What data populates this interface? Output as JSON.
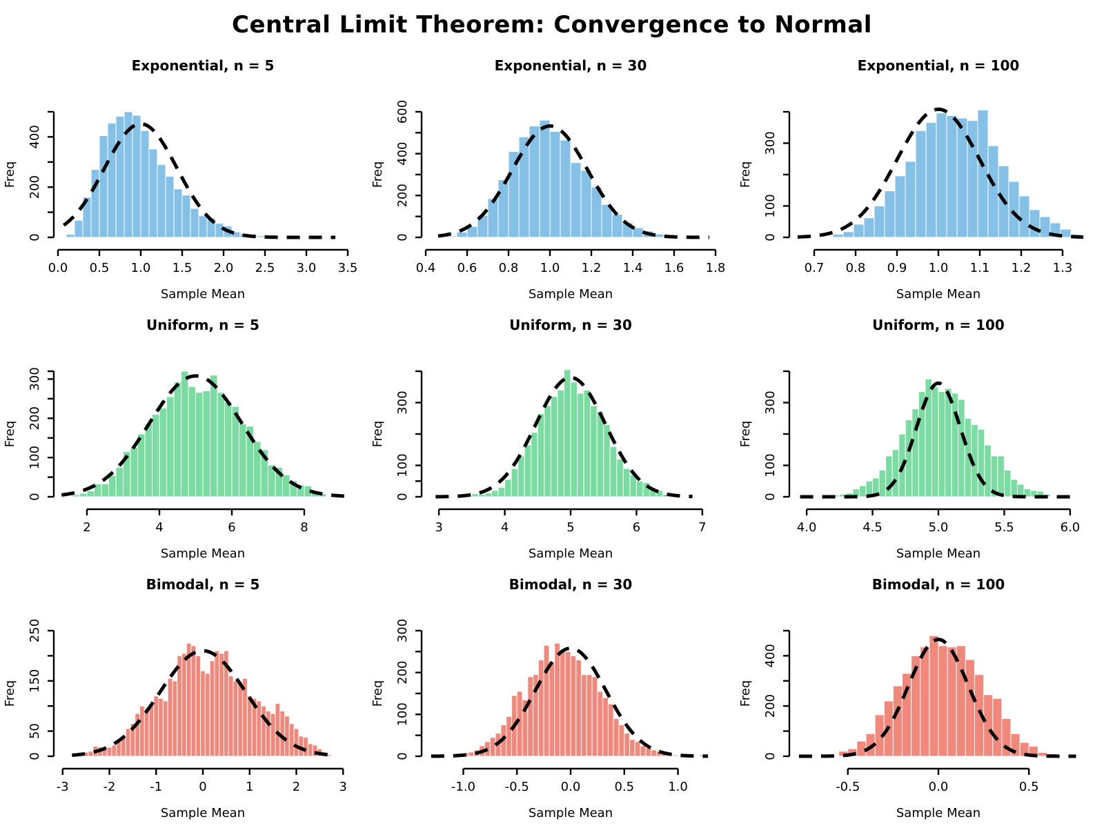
{
  "title": "Central Limit Theorem: Convergence to Normal",
  "axis_labels": {
    "x": "Sample Mean",
    "y": "Freq"
  },
  "style": {
    "bar_colors": {
      "exponential": "#85C1E6",
      "uniform": "#7BDCA2",
      "bimodal": "#F0897B"
    },
    "curve_color": "#000000",
    "axis_color": "#000000"
  },
  "chart_data": [
    {
      "type": "bar",
      "subtype": "histogram-with-normal-curve",
      "title": "Exponential, n = 5",
      "row": "exponential",
      "xlabel": "Sample Mean",
      "ylabel": "Freq",
      "x_range": [
        0.0,
        3.5
      ],
      "x_ticks": [
        [
          0.0,
          "0.0"
        ],
        [
          0.5,
          "0.5"
        ],
        [
          1.0,
          "1.0"
        ],
        [
          1.5,
          "1.5"
        ],
        [
          2.0,
          "2.0"
        ],
        [
          2.5,
          "2.5"
        ],
        [
          3.0,
          "3.0"
        ],
        [
          3.5,
          "3.5"
        ]
      ],
      "y_axis_max": 500,
      "y_ticks": [
        [
          0,
          "0"
        ],
        [
          100,
          ""
        ],
        [
          200,
          "200"
        ],
        [
          300,
          ""
        ],
        [
          400,
          "400"
        ],
        [
          500,
          ""
        ]
      ],
      "bars": {
        "x0": 0.1,
        "bin_width": 0.1,
        "heights": [
          12,
          68,
          160,
          270,
          405,
          455,
          482,
          500,
          486,
          425,
          352,
          290,
          243,
          193,
          168,
          115,
          86,
          76,
          56,
          45,
          22,
          16,
          13,
          6,
          3
        ]
      },
      "curve": {
        "mean": 1.0,
        "sd": 0.44,
        "peak": 452,
        "x_min": 0.07,
        "x_max": 3.35
      }
    },
    {
      "type": "bar",
      "subtype": "histogram-with-normal-curve",
      "title": "Exponential, n = 30",
      "row": "exponential",
      "xlabel": "Sample Mean",
      "ylabel": "Freq",
      "x_range": [
        0.4,
        1.8
      ],
      "x_ticks": [
        [
          0.4,
          "0.4"
        ],
        [
          0.6,
          "0.6"
        ],
        [
          0.8,
          "0.8"
        ],
        [
          1.0,
          "1.0"
        ],
        [
          1.2,
          "1.2"
        ],
        [
          1.4,
          "1.4"
        ],
        [
          1.6,
          "1.6"
        ],
        [
          1.8,
          "1.8"
        ]
      ],
      "y_axis_max": 600,
      "y_ticks": [
        [
          0,
          "0"
        ],
        [
          100,
          ""
        ],
        [
          200,
          "200"
        ],
        [
          300,
          ""
        ],
        [
          400,
          "400"
        ],
        [
          500,
          ""
        ],
        [
          600,
          "600"
        ]
      ],
      "bars": {
        "x0": 0.5,
        "bin_width": 0.05,
        "heights": [
          6,
          25,
          52,
          105,
          185,
          275,
          410,
          480,
          532,
          560,
          506,
          465,
          357,
          320,
          240,
          157,
          110,
          70,
          46,
          30,
          16,
          8
        ]
      },
      "curve": {
        "mean": 1.0,
        "sd": 0.182,
        "peak": 532,
        "x_min": 0.46,
        "x_max": 1.77
      }
    },
    {
      "type": "bar",
      "subtype": "histogram-with-normal-curve",
      "title": "Exponential, n = 100",
      "row": "exponential",
      "xlabel": "Sample Mean",
      "ylabel": "Freq",
      "x_range": [
        0.65,
        1.35
      ],
      "x_ticks": [
        [
          0.7,
          "0.7"
        ],
        [
          0.8,
          "0.8"
        ],
        [
          0.9,
          "0.9"
        ],
        [
          1.0,
          "1.0"
        ],
        [
          1.1,
          "1.1"
        ],
        [
          1.2,
          "1.2"
        ],
        [
          1.3,
          "1.3"
        ]
      ],
      "y_axis_max": 400,
      "y_ticks": [
        [
          0,
          "0"
        ],
        [
          100,
          "100"
        ],
        [
          200,
          ""
        ],
        [
          300,
          "300"
        ],
        [
          400,
          ""
        ]
      ],
      "bars": {
        "x0": 0.745,
        "bin_width": 0.025,
        "heights": [
          10,
          18,
          42,
          62,
          100,
          148,
          196,
          242,
          340,
          366,
          396,
          388,
          380,
          372,
          406,
          292,
          228,
          178,
          132,
          88,
          66,
          46,
          26,
          10
        ]
      },
      "curve": {
        "mean": 1.0,
        "sd": 0.1,
        "peak": 408,
        "x_min": 0.66,
        "x_max": 1.35
      }
    },
    {
      "type": "bar",
      "subtype": "histogram-with-normal-curve",
      "title": "Uniform, n = 5",
      "row": "uniform",
      "xlabel": "Sample Mean",
      "ylabel": "Freq",
      "x_range": [
        1.2,
        9.2
      ],
      "x_ticks": [
        [
          2,
          "2"
        ],
        [
          4,
          "4"
        ],
        [
          6,
          "6"
        ],
        [
          8,
          "8"
        ]
      ],
      "y_axis_max": 320,
      "y_ticks": [
        [
          0,
          "0"
        ],
        [
          50,
          ""
        ],
        [
          100,
          "100"
        ],
        [
          150,
          ""
        ],
        [
          200,
          "200"
        ],
        [
          250,
          ""
        ],
        [
          300,
          "300"
        ],
        [
          320,
          ""
        ]
      ],
      "bars": {
        "x0": 1.6,
        "bin_width": 0.2,
        "heights": [
          5,
          9,
          15,
          33,
          33,
          55,
          75,
          115,
          126,
          160,
          186,
          210,
          226,
          255,
          292,
          320,
          281,
          266,
          270,
          310,
          266,
          241,
          230,
          186,
          180,
          141,
          120,
          81,
          75,
          56,
          41,
          30,
          28,
          13,
          8
        ]
      },
      "curve": {
        "mean": 5.0,
        "sd": 1.28,
        "peak": 308,
        "x_min": 1.3,
        "x_max": 9.1
      }
    },
    {
      "type": "bar",
      "subtype": "histogram-with-normal-curve",
      "title": "Uniform, n = 30",
      "row": "uniform",
      "xlabel": "Sample Mean",
      "ylabel": "Freq",
      "x_range": [
        2.8,
        7.2
      ],
      "x_ticks": [
        [
          3,
          "3"
        ],
        [
          4,
          "4"
        ],
        [
          5,
          "5"
        ],
        [
          6,
          "6"
        ],
        [
          7,
          "7"
        ]
      ],
      "y_axis_max": 400,
      "y_ticks": [
        [
          0,
          "0"
        ],
        [
          50,
          ""
        ],
        [
          100,
          "100"
        ],
        [
          200,
          ""
        ],
        [
          300,
          "300"
        ],
        [
          400,
          ""
        ]
      ],
      "bars": {
        "x0": 3.4,
        "bin_width": 0.1,
        "heights": [
          5,
          10,
          8,
          12,
          20,
          30,
          55,
          90,
          130,
          165,
          205,
          265,
          290,
          320,
          340,
          405,
          365,
          330,
          340,
          290,
          270,
          230,
          160,
          120,
          90,
          70,
          50,
          45,
          25,
          20,
          8
        ]
      },
      "curve": {
        "mean": 5.0,
        "sd": 0.53,
        "peak": 380,
        "x_min": 2.95,
        "x_max": 6.85
      }
    },
    {
      "type": "bar",
      "subtype": "histogram-with-normal-curve",
      "title": "Uniform, n = 100",
      "row": "uniform",
      "xlabel": "Sample Mean",
      "ylabel": "Freq",
      "x_range": [
        3.9,
        6.1
      ],
      "x_ticks": [
        [
          4.0,
          "4.0"
        ],
        [
          4.5,
          "4.5"
        ],
        [
          5.0,
          "5.0"
        ],
        [
          5.5,
          "5.5"
        ],
        [
          6.0,
          "6.0"
        ]
      ],
      "y_axis_max": 400,
      "y_ticks": [
        [
          0,
          "0"
        ],
        [
          100,
          "100"
        ],
        [
          200,
          ""
        ],
        [
          300,
          "300"
        ],
        [
          400,
          ""
        ]
      ],
      "bars": {
        "x0": 4.2,
        "bin_width": 0.05,
        "heights": [
          5,
          8,
          12,
          25,
          35,
          50,
          60,
          85,
          130,
          150,
          200,
          245,
          280,
          335,
          375,
          350,
          335,
          345,
          330,
          310,
          250,
          230,
          215,
          165,
          130,
          130,
          85,
          55,
          40,
          25,
          20,
          18,
          8
        ]
      },
      "curve": {
        "mean": 5.0,
        "sd": 0.167,
        "peak": 362,
        "x_min": 3.95,
        "x_max": 6.05
      }
    },
    {
      "type": "bar",
      "subtype": "histogram-with-normal-curve",
      "title": "Bimodal, n = 5",
      "row": "bimodal",
      "xlabel": "Sample Mean",
      "ylabel": "Freq",
      "x_range": [
        -3.1,
        3.1
      ],
      "x_ticks": [
        [
          -3,
          "-3"
        ],
        [
          -2,
          "-2"
        ],
        [
          -1,
          "-1"
        ],
        [
          0,
          "0"
        ],
        [
          1,
          "1"
        ],
        [
          2,
          "2"
        ],
        [
          3,
          "3"
        ]
      ],
      "y_axis_max": 250,
      "y_ticks": [
        [
          0,
          "0"
        ],
        [
          50,
          "50"
        ],
        [
          100,
          ""
        ],
        [
          150,
          "150"
        ],
        [
          200,
          ""
        ],
        [
          250,
          "250"
        ]
      ],
      "bars": {
        "x0": -2.75,
        "bin_width": 0.1,
        "heights": [
          3,
          5,
          8,
          10,
          20,
          18,
          15,
          18,
          22,
          30,
          40,
          55,
          65,
          85,
          100,
          95,
          105,
          120,
          115,
          110,
          155,
          150,
          200,
          205,
          225,
          220,
          200,
          170,
          165,
          190,
          210,
          205,
          210,
          160,
          150,
          148,
          155,
          120,
          115,
          110,
          100,
          90,
          85,
          105,
          90,
          80,
          65,
          55,
          40,
          38,
          25,
          22,
          15,
          8,
          3
        ]
      },
      "curve": {
        "mean": 0.0,
        "sd": 0.92,
        "peak": 210,
        "x_min": -2.8,
        "x_max": 2.8
      }
    },
    {
      "type": "bar",
      "subtype": "histogram-with-normal-curve",
      "title": "Bimodal, n = 30",
      "row": "bimodal",
      "xlabel": "Sample Mean",
      "ylabel": "Freq",
      "x_range": [
        -1.35,
        1.35
      ],
      "x_ticks": [
        [
          -1.0,
          "-1.0"
        ],
        [
          -0.5,
          "-0.5"
        ],
        [
          0.0,
          "0.0"
        ],
        [
          0.5,
          "0.5"
        ],
        [
          1.0,
          "1.0"
        ]
      ],
      "y_axis_max": 300,
      "y_ticks": [
        [
          0,
          "0"
        ],
        [
          50,
          ""
        ],
        [
          100,
          "100"
        ],
        [
          150,
          ""
        ],
        [
          200,
          "200"
        ],
        [
          250,
          ""
        ],
        [
          300,
          "300"
        ]
      ],
      "bars": {
        "x0": -1.05,
        "bin_width": 0.05,
        "heights": [
          4,
          8,
          10,
          15,
          25,
          35,
          45,
          55,
          75,
          95,
          145,
          155,
          135,
          190,
          195,
          230,
          265,
          225,
          270,
          255,
          250,
          240,
          230,
          195,
          195,
          190,
          155,
          140,
          125,
          90,
          75,
          55,
          40,
          35,
          25,
          20,
          15,
          12,
          8,
          5,
          3,
          0,
          0,
          0,
          0,
          3
        ]
      },
      "curve": {
        "mean": 0.0,
        "sd": 0.33,
        "peak": 258,
        "x_min": -1.3,
        "x_max": 1.28
      }
    },
    {
      "type": "bar",
      "subtype": "histogram-with-normal-curve",
      "title": "Bimodal, n = 100",
      "row": "bimodal",
      "xlabel": "Sample Mean",
      "ylabel": "Freq",
      "x_range": [
        -0.8,
        0.8
      ],
      "x_ticks": [
        [
          -0.5,
          "-0.5"
        ],
        [
          0.0,
          "0.0"
        ],
        [
          0.5,
          "0.5"
        ]
      ],
      "y_axis_max": 500,
      "y_ticks": [
        [
          0,
          "0"
        ],
        [
          100,
          ""
        ],
        [
          200,
          "200"
        ],
        [
          300,
          ""
        ],
        [
          400,
          "400"
        ],
        [
          500,
          ""
        ]
      ],
      "bars": {
        "x0": -0.55,
        "bin_width": 0.05,
        "heights": [
          20,
          30,
          60,
          90,
          165,
          220,
          280,
          330,
          400,
          435,
          480,
          440,
          435,
          440,
          385,
          325,
          245,
          230,
          150,
          90,
          55,
          40,
          15,
          10
        ]
      },
      "curve": {
        "mean": 0.0,
        "sd": 0.165,
        "peak": 465,
        "x_min": -0.77,
        "x_max": 0.76
      }
    }
  ]
}
